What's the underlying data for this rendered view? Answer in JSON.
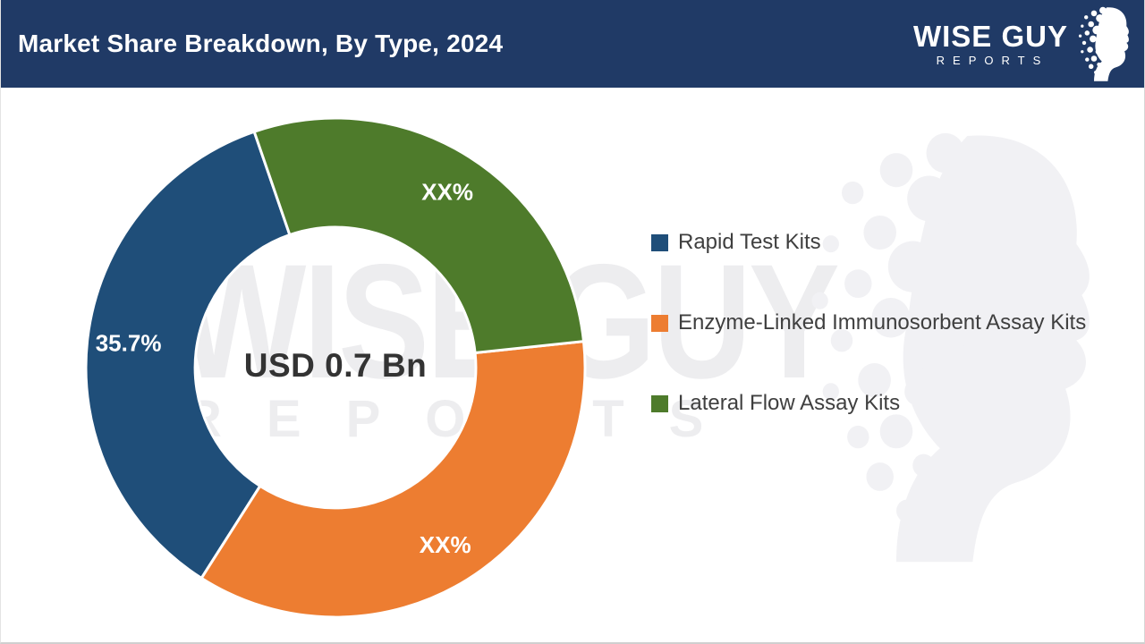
{
  "header": {
    "title": "Market Share Breakdown, By Type, 2024"
  },
  "logo": {
    "brand_top": "WISE GUY",
    "brand_bottom": "REPORTS",
    "icon": "dotted-head-profile-icon"
  },
  "watermark": {
    "line1": "WISE GUY",
    "line2": "REPORTS"
  },
  "chart_data": {
    "type": "pie",
    "subtype": "donut",
    "title": "Market Share Breakdown, By Type, 2024",
    "center_label": "USD 0.7 Bn",
    "rotation_deg": -19,
    "direction": "counterclockwise",
    "legend_position": "right",
    "segments": [
      {
        "label": "Rapid Test Kits",
        "display_value": "35.7%",
        "value": 35.7,
        "color": "#1F4E79"
      },
      {
        "label": "Enzyme-Linked Immunosorbent Assay Kits",
        "display_value": "XX%",
        "value": 35.7,
        "color": "#ED7D31"
      },
      {
        "label": "Lateral Flow Assay Kits",
        "display_value": "XX%",
        "value": 28.6,
        "color": "#4E7B2B"
      }
    ]
  },
  "colors": {
    "header_bg": "#203A66",
    "watermark": "#EDEDEF",
    "center_text": "#333333",
    "legend_text": "#3F3F3F",
    "separator": "#FFFFFF"
  }
}
